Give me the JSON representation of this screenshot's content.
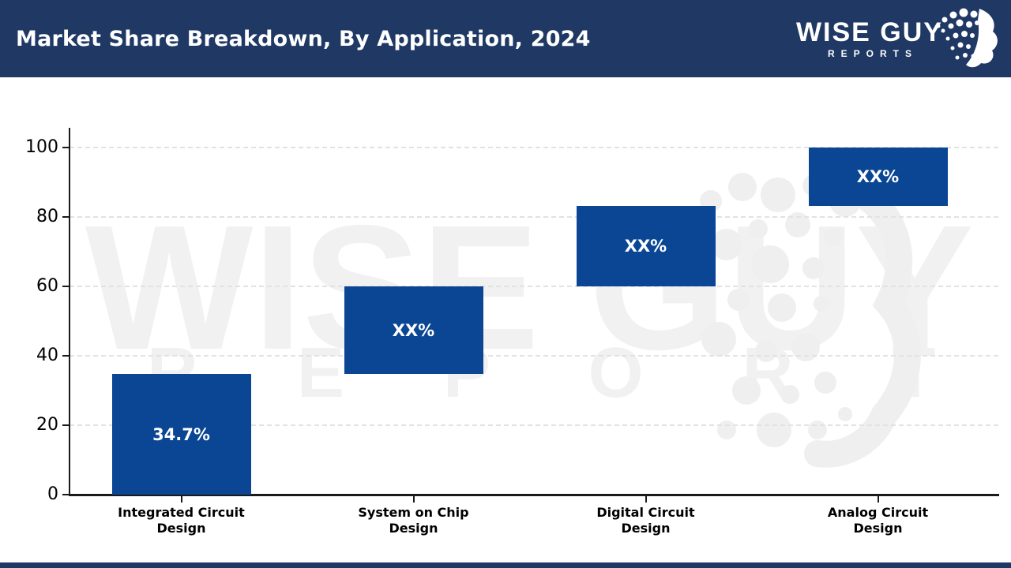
{
  "header": {
    "title": "Market Share Breakdown, By Application, 2024",
    "background": "#1f3864",
    "logo": {
      "line1": "WISE GUY",
      "line2": "REPORTS"
    }
  },
  "footer": {
    "background": "#1f3864"
  },
  "watermark": {
    "line1": "WISE GUY",
    "line2": "R E P O R T S"
  },
  "chart_data": {
    "type": "bar",
    "subtype": "waterfall",
    "title": "Market Share Breakdown, By Application, 2024",
    "categories": [
      {
        "line1": "Integrated Circuit",
        "line2": "Design"
      },
      {
        "line1": "System on Chip",
        "line2": "Design"
      },
      {
        "line1": "Digital Circuit",
        "line2": "Design"
      },
      {
        "line1": "Analog Circuit",
        "line2": "Design"
      }
    ],
    "segments": [
      {
        "start": 0,
        "end": 34.7,
        "value": 34.7,
        "label": "34.7%"
      },
      {
        "start": 34.7,
        "end": 60.0,
        "value": 25.3,
        "label": "XX%"
      },
      {
        "start": 60.0,
        "end": 83.2,
        "value": 23.2,
        "label": "XX%"
      },
      {
        "start": 83.2,
        "end": 100,
        "value": 16.8,
        "label": "XX%"
      }
    ],
    "yticks": [
      0,
      20,
      40,
      60,
      80,
      100
    ],
    "ylim": [
      0,
      105
    ],
    "grid": "horizontal-dashed",
    "bar_color": "#0a4694",
    "axis_color": "#1a1a1a",
    "gridline_color": "#e2e2e2"
  }
}
